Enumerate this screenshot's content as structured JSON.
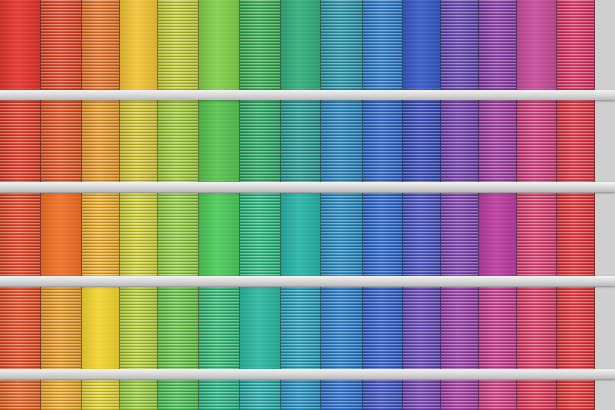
{
  "scene": {
    "description_tags": [
      "rainbow-facade",
      "louvre-panels",
      "horizontal-ledges"
    ],
    "ledge_color": "#e6e6e6",
    "rows": [
      {
        "panels": [
          {
            "color": "#e8322b",
            "texture": "smooth"
          },
          {
            "color": "#e64a2a",
            "texture": "dense"
          },
          {
            "color": "#ee7a2a",
            "texture": "dense"
          },
          {
            "color": "#f2c230",
            "texture": "smooth"
          },
          {
            "color": "#c9d23a",
            "texture": "dense"
          },
          {
            "color": "#7fcf45",
            "texture": "smooth"
          },
          {
            "color": "#3cb456",
            "texture": "dense"
          },
          {
            "color": "#2fae7c",
            "texture": "smooth"
          },
          {
            "color": "#2c9bb0",
            "texture": "dense"
          },
          {
            "color": "#2f7fd0",
            "texture": "dense"
          },
          {
            "color": "#3558c8",
            "texture": "smooth"
          },
          {
            "color": "#6a4ab8",
            "texture": "dense"
          },
          {
            "color": "#8e3fae",
            "texture": "dense"
          },
          {
            "color": "#c84a9a",
            "texture": "smooth"
          },
          {
            "color": "#e2386a",
            "texture": "dense"
          }
        ]
      },
      {
        "panels": [
          {
            "color": "#e8402a",
            "texture": "dense"
          },
          {
            "color": "#e85a28",
            "texture": "dense"
          },
          {
            "color": "#f0a02c",
            "texture": "dense"
          },
          {
            "color": "#dccd36",
            "texture": "dense"
          },
          {
            "color": "#a6d23e",
            "texture": "dense"
          },
          {
            "color": "#54c44c",
            "texture": "smooth"
          },
          {
            "color": "#2fb06a",
            "texture": "dense"
          },
          {
            "color": "#2aa09a",
            "texture": "dense"
          },
          {
            "color": "#2b8ac4",
            "texture": "dense"
          },
          {
            "color": "#2f6ad0",
            "texture": "dense"
          },
          {
            "color": "#3a4ec2",
            "texture": "dense"
          },
          {
            "color": "#7a44b6",
            "texture": "dense"
          },
          {
            "color": "#a63ea8",
            "texture": "dense"
          },
          {
            "color": "#d84080",
            "texture": "dense"
          },
          {
            "color": "#e63a48",
            "texture": "dense"
          }
        ]
      },
      {
        "panels": [
          {
            "color": "#ea4a28",
            "texture": "dense"
          },
          {
            "color": "#ee6e26",
            "texture": "smooth"
          },
          {
            "color": "#f4b22e",
            "texture": "dense"
          },
          {
            "color": "#d6d83a",
            "texture": "dense"
          },
          {
            "color": "#98d446",
            "texture": "dense"
          },
          {
            "color": "#4cc85a",
            "texture": "smooth"
          },
          {
            "color": "#2cbf84",
            "texture": "dense"
          },
          {
            "color": "#28b2a6",
            "texture": "smooth"
          },
          {
            "color": "#2a90c8",
            "texture": "dense"
          },
          {
            "color": "#2e6cd4",
            "texture": "dense"
          },
          {
            "color": "#4a54c6",
            "texture": "dense"
          },
          {
            "color": "#8446b6",
            "texture": "dense"
          },
          {
            "color": "#b83c9e",
            "texture": "smooth"
          },
          {
            "color": "#e24276",
            "texture": "dense"
          },
          {
            "color": "#e8383c",
            "texture": "dense"
          }
        ]
      },
      {
        "panels": [
          {
            "color": "#ec5228",
            "texture": "dense"
          },
          {
            "color": "#f0a02a",
            "texture": "dense"
          },
          {
            "color": "#f2d432",
            "texture": "smooth"
          },
          {
            "color": "#bcd63c",
            "texture": "dense"
          },
          {
            "color": "#6ccc4c",
            "texture": "dense"
          },
          {
            "color": "#34c07a",
            "texture": "dense"
          },
          {
            "color": "#2cb6a0",
            "texture": "smooth"
          },
          {
            "color": "#2aa4c0",
            "texture": "dense"
          },
          {
            "color": "#2c82d0",
            "texture": "dense"
          },
          {
            "color": "#3462d2",
            "texture": "dense"
          },
          {
            "color": "#6a4cc0",
            "texture": "dense"
          },
          {
            "color": "#9e42b0",
            "texture": "dense"
          },
          {
            "color": "#cc3e94",
            "texture": "dense"
          },
          {
            "color": "#e4406a",
            "texture": "dense"
          },
          {
            "color": "#e83a3e",
            "texture": "dense"
          }
        ]
      },
      {
        "panels": [
          {
            "color": "#ee6a2a",
            "texture": "dense"
          },
          {
            "color": "#f3b02e",
            "texture": "dense"
          },
          {
            "color": "#e8d836",
            "texture": "dense"
          },
          {
            "color": "#9ed642",
            "texture": "dense"
          },
          {
            "color": "#4ec658",
            "texture": "dense"
          },
          {
            "color": "#2cbc8a",
            "texture": "dense"
          },
          {
            "color": "#2ab0b0",
            "texture": "dense"
          },
          {
            "color": "#2a96c8",
            "texture": "dense"
          },
          {
            "color": "#2e74d2",
            "texture": "dense"
          },
          {
            "color": "#4258c8",
            "texture": "dense"
          },
          {
            "color": "#7c48ba",
            "texture": "dense"
          },
          {
            "color": "#ac40a8",
            "texture": "dense"
          },
          {
            "color": "#d8428a",
            "texture": "dense"
          },
          {
            "color": "#e63c5c",
            "texture": "dense"
          },
          {
            "color": "#ea3a3a",
            "texture": "dense"
          }
        ]
      }
    ]
  }
}
